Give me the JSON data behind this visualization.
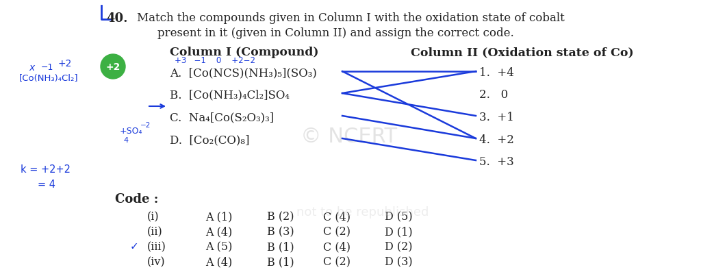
{
  "background_color": "#ffffff",
  "question_number": "40.",
  "question_text1": "Match the compounds given in Column I with the oxidation state of cobalt",
  "question_text2": "present in it (given in Column II) and assign the correct code.",
  "col1_header": "Column I (Compound)",
  "col2_header": "Column II (Oxidation state of Co)",
  "compound_A": "A.  [Co(NCS)(NH₃)₅](SO₃)",
  "compound_B": "B.  [Co(NH₃)₄Cl₂]SO₄",
  "compound_C": "C.  Na₄[Co(S₂O₃)₃]",
  "compound_D": "D.  [Co₂(CO)₈]",
  "ox1": "1.  +4",
  "ox2": "2.   0",
  "ox3": "3.  +1",
  "ox4": "4.  +2",
  "ox5": "5.  +3",
  "code_label": "Code :",
  "code_rows": [
    [
      "(i)",
      "A (1)",
      "B (2)",
      "C (4)",
      "D (5)"
    ],
    [
      "(ii)",
      "A (4)",
      "B (3)",
      "C (2)",
      "D (1)"
    ],
    [
      "(iii)",
      "A (5)",
      "B (1)",
      "C (4)",
      "D (2)"
    ],
    [
      "(iv)",
      "A (4)",
      "B (1)",
      "C (2)",
      "D (3)"
    ]
  ],
  "blue_color": "#1a3adb",
  "green_color": "#3cb043",
  "text_color": "#222222",
  "main_font_size": 12,
  "header_font_size": 12.5
}
